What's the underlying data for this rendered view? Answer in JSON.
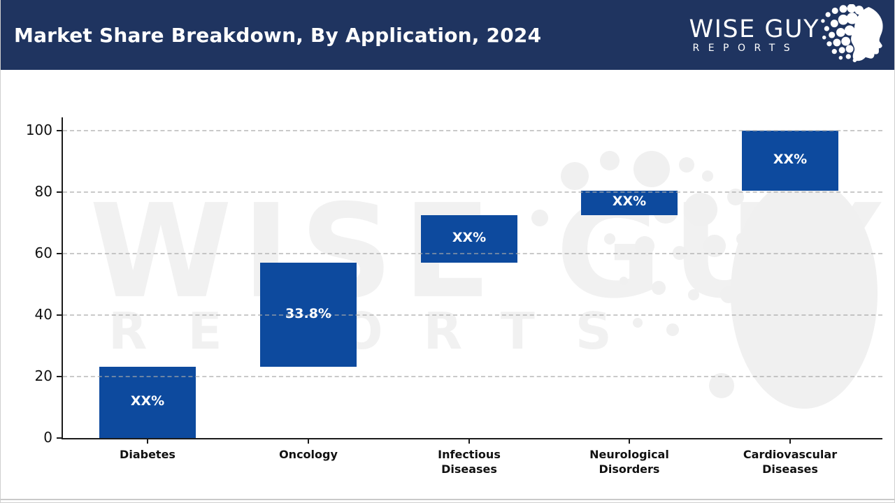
{
  "header": {
    "title": "Market Share Breakdown, By Application, 2024",
    "logo": {
      "line1": "WISE GUY",
      "line2": "REPORTS"
    }
  },
  "watermark": {
    "line1": "WISE GUY",
    "line2": "REPORTS"
  },
  "chart_data": {
    "type": "bar",
    "subtype": "waterfall",
    "title": "Market Share Breakdown, By Application, 2024",
    "categories": [
      "Diabetes",
      "Oncology",
      "Infectious Diseases",
      "Neurological Disorders",
      "Cardiovascular Diseases"
    ],
    "bars": [
      {
        "category": "Diabetes",
        "category_lines": [
          "Diabetes"
        ],
        "start": 0,
        "end": 23.2,
        "value": 23.2,
        "label": "XX%"
      },
      {
        "category": "Oncology",
        "category_lines": [
          "Oncology"
        ],
        "start": 23.2,
        "end": 57.0,
        "value": 33.8,
        "label": "33.8%"
      },
      {
        "category": "Infectious Diseases",
        "category_lines": [
          "Infectious",
          "Diseases"
        ],
        "start": 57.0,
        "end": 72.5,
        "value": 15.5,
        "label": "XX%"
      },
      {
        "category": "Neurological Disorders",
        "category_lines": [
          "Neurological",
          "Disorders"
        ],
        "start": 72.5,
        "end": 80.5,
        "value": 8.0,
        "label": "XX%"
      },
      {
        "category": "Cardiovascular Diseases",
        "category_lines": [
          "Cardiovascular",
          "Diseases"
        ],
        "start": 80.5,
        "end": 100,
        "value": 19.5,
        "label": "XX%"
      }
    ],
    "ylim": [
      0,
      100
    ],
    "yticks": [
      0,
      20,
      40,
      60,
      80,
      100
    ],
    "xlabel": "",
    "ylabel": "",
    "grid": "horizontal-dashed",
    "legend": "none",
    "bar_color": "#0d4a9e",
    "header_color": "#1f3460"
  }
}
